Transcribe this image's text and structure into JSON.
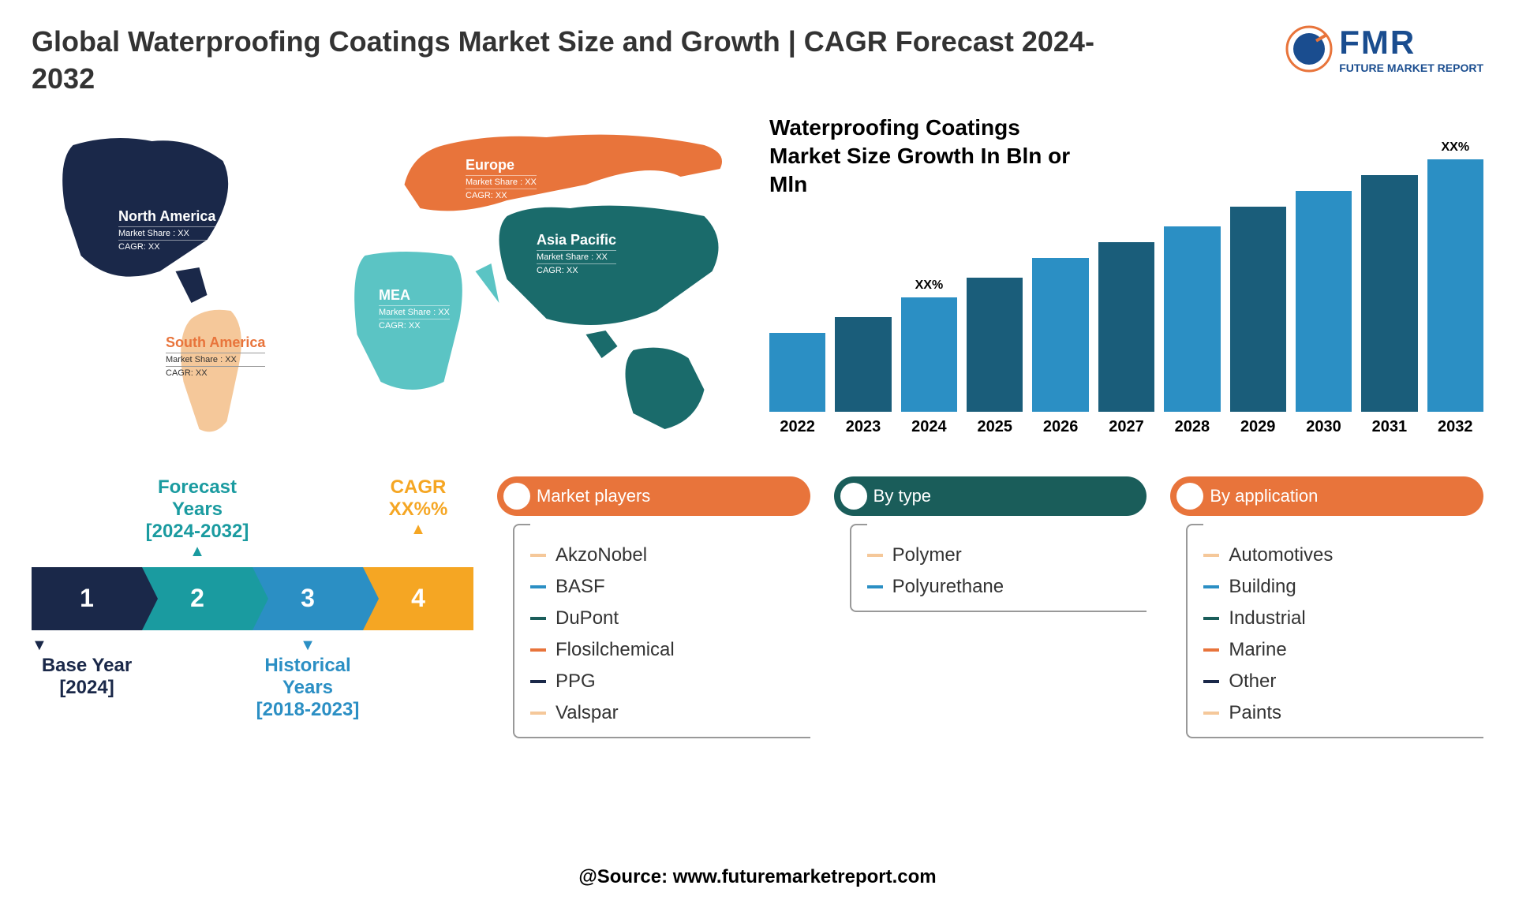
{
  "title": "Global Waterproofing Coatings Market Size and Growth | CAGR Forecast 2024-2032",
  "logo": {
    "fmr": "FMR",
    "sub": "FUTURE MARKET REPORT"
  },
  "map": {
    "regions": [
      {
        "name": "North America",
        "share": "Market Share : XX",
        "cagr": "CAGR: XX",
        "color": "#1a2849"
      },
      {
        "name": "South America",
        "share": "Market Share : XX",
        "cagr": "CAGR: XX",
        "color": "#f5c89a"
      },
      {
        "name": "Europe",
        "share": "Market Share : XX",
        "cagr": "CAGR: XX",
        "color": "#e8743b"
      },
      {
        "name": "MEA",
        "share": "Market Share : XX",
        "cagr": "CAGR: XX",
        "color": "#5bc4c4"
      },
      {
        "name": "Asia Pacific",
        "share": "Market Share : XX",
        "cagr": "CAGR: XX",
        "color": "#1a6b6b"
      }
    ]
  },
  "chart": {
    "title": "Waterproofing Coatings Market Size Growth In Bln or Mln",
    "years": [
      "2022",
      "2023",
      "2024",
      "2025",
      "2026",
      "2027",
      "2028",
      "2029",
      "2030",
      "2031",
      "2032"
    ],
    "heights": [
      100,
      120,
      145,
      170,
      195,
      215,
      235,
      260,
      280,
      300,
      320
    ],
    "colors": [
      "#2b8fc4",
      "#1a5d7a",
      "#2b8fc4",
      "#1a5d7a",
      "#2b8fc4",
      "#1a5d7a",
      "#2b8fc4",
      "#1a5d7a",
      "#2b8fc4",
      "#1a5d7a",
      "#2b8fc4"
    ],
    "labels": {
      "2024": "XX%",
      "2032": "XX%"
    }
  },
  "timeline": {
    "top": [
      {
        "text": "Forecast Years",
        "sub": "[2024-2032]",
        "color": "#1a9ba0"
      },
      {
        "text": "CAGR",
        "sub": "XX%%",
        "color": "#f5a623"
      }
    ],
    "segments": [
      "1",
      "2",
      "3",
      "4"
    ],
    "bottom": [
      {
        "text": "Base Year",
        "sub": "[2024]",
        "color": "#1a2849"
      },
      {
        "text": "Historical Years",
        "sub": "[2018-2023]",
        "color": "#2b8fc4"
      }
    ]
  },
  "categories": [
    {
      "title": "Market players",
      "color": "#e8743b",
      "items": [
        {
          "name": "AkzoNobel",
          "bullet": "#f5c89a"
        },
        {
          "name": "BASF",
          "bullet": "#2b8fc4"
        },
        {
          "name": "DuPont",
          "bullet": "#1a5d5a"
        },
        {
          "name": "Flosilchemical",
          "bullet": "#e8743b"
        },
        {
          "name": "PPG",
          "bullet": "#1a2849"
        },
        {
          "name": "Valspar",
          "bullet": "#f5c89a"
        }
      ]
    },
    {
      "title": "By type",
      "color": "#1a5d5a",
      "items": [
        {
          "name": "Polymer",
          "bullet": "#f5c89a"
        },
        {
          "name": "Polyurethane",
          "bullet": "#2b8fc4"
        }
      ]
    },
    {
      "title": "By application",
      "color": "#e8743b",
      "items": [
        {
          "name": "Automotives",
          "bullet": "#f5c89a"
        },
        {
          "name": "Building",
          "bullet": "#2b8fc4"
        },
        {
          "name": "Industrial",
          "bullet": "#1a5d5a"
        },
        {
          "name": "Marine",
          "bullet": "#e8743b"
        },
        {
          "name": "Other",
          "bullet": "#1a2849"
        },
        {
          "name": "Paints",
          "bullet": "#f5c89a"
        }
      ]
    }
  ],
  "source": "@Source: www.futuremarketreport.com"
}
